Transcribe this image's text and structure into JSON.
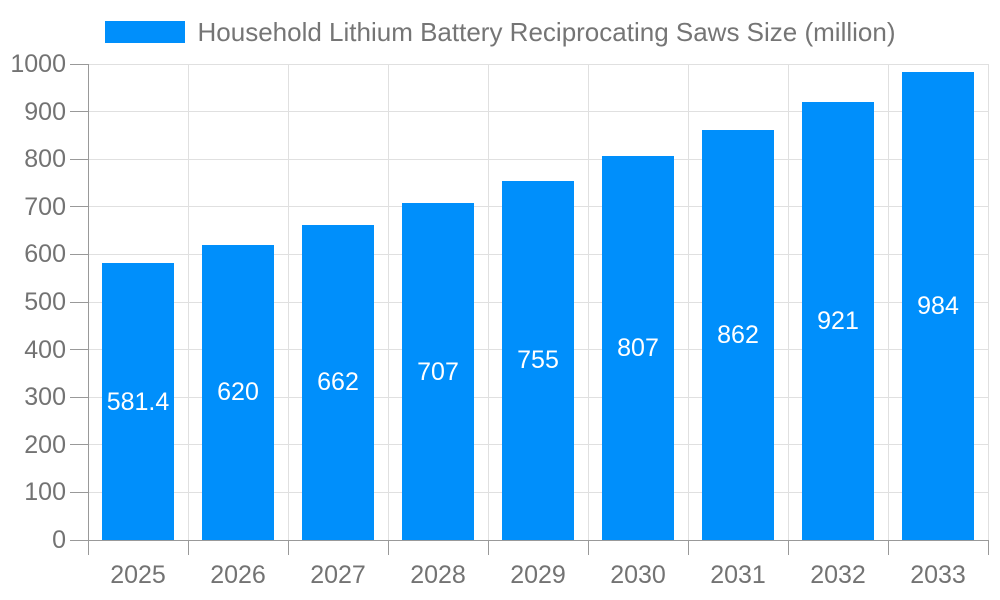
{
  "legend": {
    "label": "Household Lithium Battery Reciprocating Saws Size (million)"
  },
  "chart_data": {
    "type": "bar",
    "title": "Household Lithium Battery Reciprocating Saws Size (million)",
    "categories": [
      "2025",
      "2026",
      "2027",
      "2028",
      "2029",
      "2030",
      "2031",
      "2032",
      "2033"
    ],
    "values": [
      581.4,
      620,
      662,
      707,
      755,
      807,
      862,
      921,
      984
    ],
    "bar_labels": [
      "581.4",
      "620",
      "662",
      "707",
      "755",
      "807",
      "862",
      "921",
      "984"
    ],
    "xlabel": "",
    "ylabel": "",
    "ylim": [
      0,
      1000
    ],
    "ytick_step": 100,
    "ytick_labels": [
      "0",
      "100",
      "200",
      "300",
      "400",
      "500",
      "600",
      "700",
      "800",
      "900",
      "1000"
    ],
    "grid": true,
    "legend_position": "top-center",
    "colors": {
      "bar": "#008ffb",
      "bar_label": "#ffffff",
      "axis_text": "#737373",
      "legend_text": "#757575",
      "grid_line": "#e0e0e0",
      "axis_line": "#999999",
      "background": "#ffffff"
    }
  }
}
